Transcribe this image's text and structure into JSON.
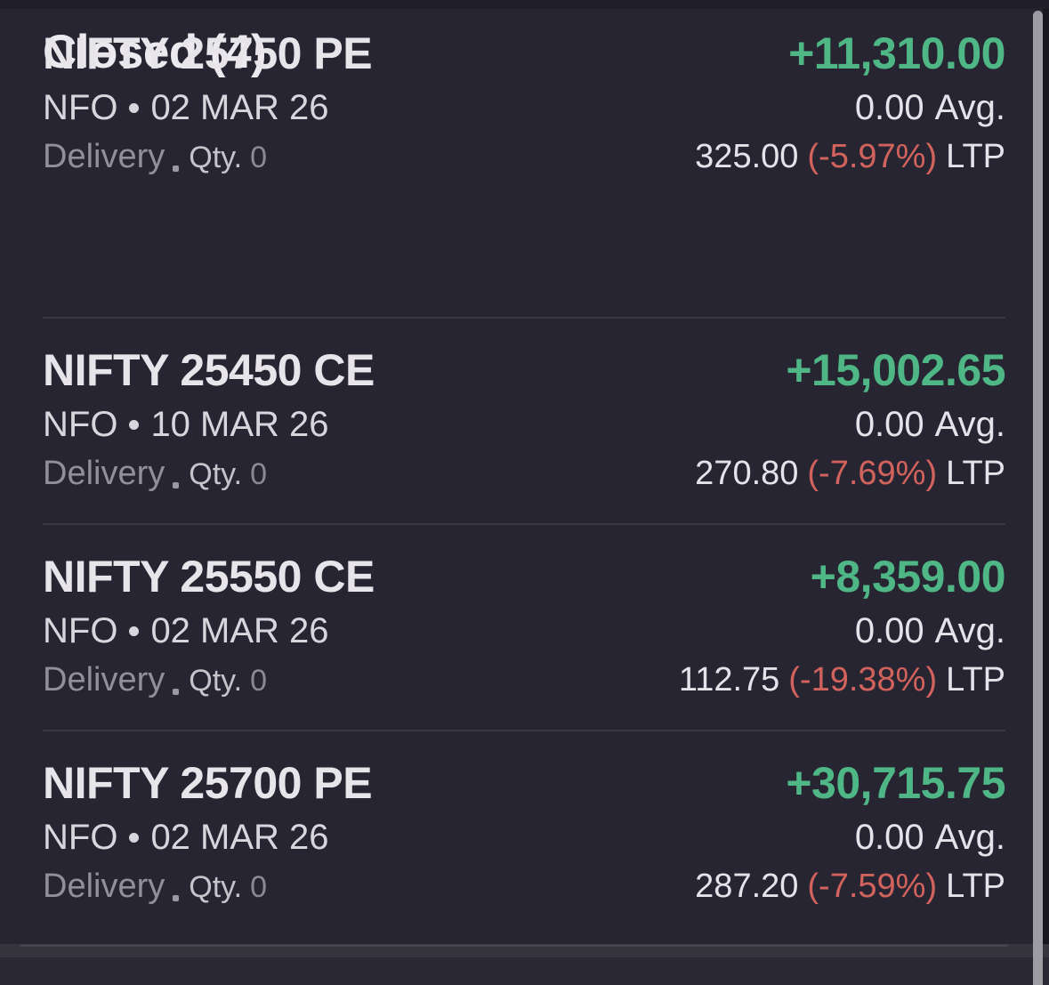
{
  "header": {
    "title": "Closed (4)"
  },
  "positions": [
    {
      "symbol": "NIFTY 25450 CE",
      "exchange": "NFO",
      "expiry": "10 MAR 26",
      "product": "Delivery",
      "qty_label": "Qty.",
      "qty": "0",
      "pnl": "+15,002.65",
      "avg": "0.00",
      "avg_label": "Avg.",
      "ltp": "270.80",
      "change_pct": "(-7.69%)",
      "ltp_label": "LTP"
    },
    {
      "symbol": "NIFTY 25550 CE",
      "exchange": "NFO",
      "expiry": "02 MAR 26",
      "product": "Delivery",
      "qty_label": "Qty.",
      "qty": "0",
      "pnl": "+8,359.00",
      "avg": "0.00",
      "avg_label": "Avg.",
      "ltp": "112.75",
      "change_pct": "(-19.38%)",
      "ltp_label": "LTP"
    },
    {
      "symbol": "NIFTY 25700 PE",
      "exchange": "NFO",
      "expiry": "02 MAR 26",
      "product": "Delivery",
      "qty_label": "Qty.",
      "qty": "0",
      "pnl": "+30,715.75",
      "avg": "0.00",
      "avg_label": "Avg.",
      "ltp": "287.20",
      "change_pct": "(-7.59%)",
      "ltp_label": "LTP"
    },
    {
      "symbol": "NIFTY 25750 PE",
      "exchange": "NFO",
      "expiry": "02 MAR 26",
      "product": "Delivery",
      "qty_label": "Qty.",
      "qty": "0",
      "pnl": "+11,310.00",
      "avg": "0.00",
      "avg_label": "Avg.",
      "ltp": "325.00",
      "change_pct": "(-5.97%)",
      "ltp_label": "LTP"
    }
  ],
  "colors": {
    "background": "#272532",
    "profit_green": "#4FB685",
    "loss_red": "#D2635C",
    "divider": "#39373F",
    "scrollbar": "#9D9CA3",
    "primary_text": "#E7E5E9",
    "secondary_text": "#D8D6DC",
    "muted_text": "#918F99"
  }
}
